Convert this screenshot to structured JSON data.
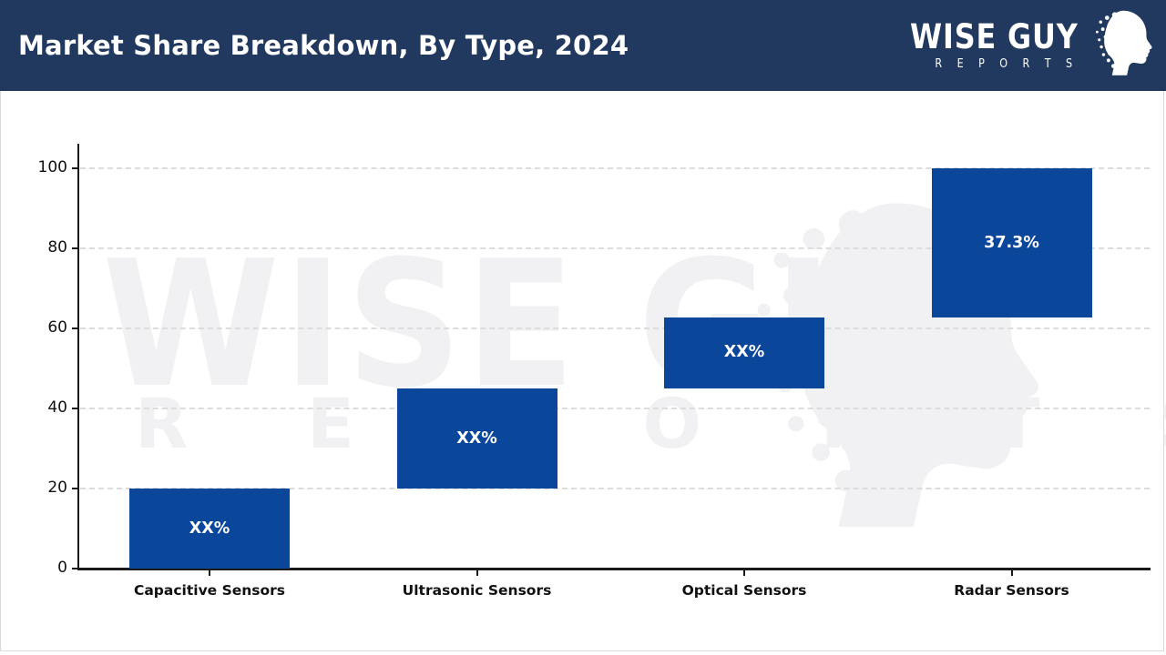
{
  "header": {
    "title": "Market Share Breakdown, By Type, 2024",
    "background": "#21395f",
    "logo": {
      "line1": "WISE GUY",
      "line2": "R E P O R T S"
    }
  },
  "watermark": {
    "line1": "WISE GUY",
    "line2": "R E P O R T S"
  },
  "chart_data": {
    "type": "bar",
    "variant": "waterfall",
    "title": "Market Share Breakdown, By Type, 2024",
    "categories": [
      "Capacitive Sensors",
      "Ultrasonic Sensors",
      "Optical Sensors",
      "Radar Sensors"
    ],
    "segments": [
      {
        "category": "Capacitive Sensors",
        "start": 0,
        "end": 20,
        "label": "XX%"
      },
      {
        "category": "Ultrasonic Sensors",
        "start": 20,
        "end": 45,
        "label": "XX%"
      },
      {
        "category": "Optical Sensors",
        "start": 45,
        "end": 62.7,
        "label": "XX%"
      },
      {
        "category": "Radar Sensors",
        "start": 62.7,
        "end": 100,
        "label": "37.3%"
      }
    ],
    "yticks": [
      0,
      20,
      40,
      60,
      80,
      100
    ],
    "ylim": [
      0,
      106
    ],
    "xlabel": "",
    "ylabel": "",
    "legend": null,
    "grid": "horizontal-dashed",
    "colors": {
      "bar": "#0a479b",
      "grid": "#dcdcdc",
      "axis": "#1a1a1a",
      "bar_label": "#ffffff",
      "header_bg": "#21395f",
      "watermark": "#f1f1f3"
    }
  }
}
